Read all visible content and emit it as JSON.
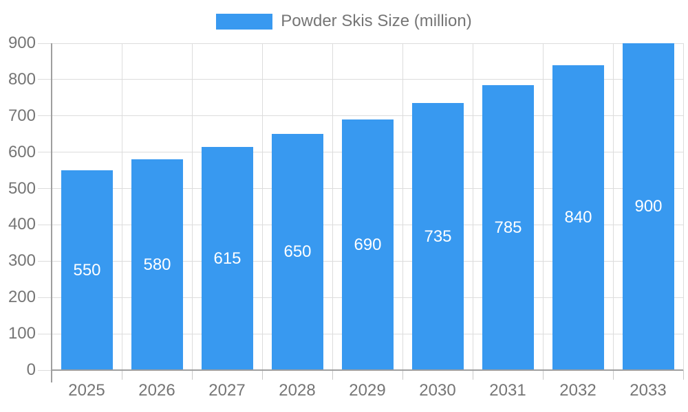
{
  "legend": {
    "label": "Powder Skis Size (million)"
  },
  "chart_data": {
    "type": "bar",
    "title": "Powder Skis Size (million)",
    "series_name": "Powder Skis Size (million)",
    "categories": [
      "2025",
      "2026",
      "2027",
      "2028",
      "2029",
      "2030",
      "2031",
      "2032",
      "2033"
    ],
    "values": [
      550,
      580,
      615,
      650,
      690,
      735,
      785,
      840,
      900
    ],
    "xlabel": "",
    "ylabel": "",
    "ylim": [
      0,
      900
    ],
    "yticks": [
      0,
      100,
      200,
      300,
      400,
      500,
      600,
      700,
      800,
      900
    ],
    "grid": true,
    "legend_position": "top-center",
    "value_labels": "inside-center-white",
    "colors": {
      "bar": "#3899F0",
      "axis_text": "#757575",
      "value_label": "#ffffff",
      "gridline": "#dcdcdc",
      "x_tick": "#c8c8c8",
      "axis_line": "#9e9e9e",
      "background": "#ffffff"
    }
  }
}
